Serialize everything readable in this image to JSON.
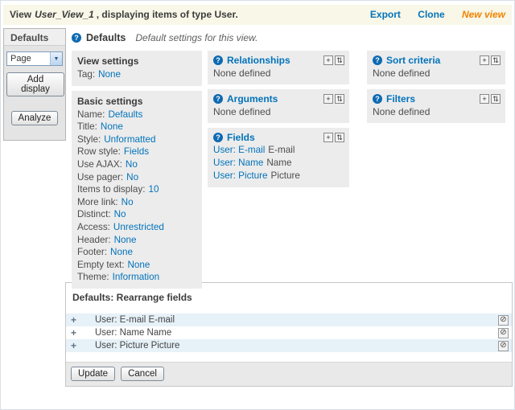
{
  "header": {
    "title_prefix": "View",
    "view_name": "User_View_1",
    "title_suffix": ", displaying items of type User.",
    "actions": {
      "export": "Export",
      "clone": "Clone",
      "new_view": "New view"
    }
  },
  "sidebar": {
    "tab_label": "Defaults",
    "display_select_value": "Page",
    "add_display_label": "Add display",
    "analyze_label": "Analyze"
  },
  "display": {
    "title": "Defaults",
    "subtitle": "Default settings for this view."
  },
  "panes": {
    "view_settings": {
      "title": "View settings",
      "rows": [
        {
          "label": "Tag:",
          "value": "None"
        }
      ]
    },
    "basic_settings": {
      "title": "Basic settings",
      "rows": [
        {
          "label": "Name:",
          "value": "Defaults"
        },
        {
          "label": "Title:",
          "value": "None"
        },
        {
          "label": "Style:",
          "value": "Unformatted"
        },
        {
          "label": "Row style:",
          "value": "Fields"
        },
        {
          "label": "Use AJAX:",
          "value": "No"
        },
        {
          "label": "Use pager:",
          "value": "No"
        },
        {
          "label": "Items to display:",
          "value": "10"
        },
        {
          "label": "More link:",
          "value": "No"
        },
        {
          "label": "Distinct:",
          "value": "No"
        },
        {
          "label": "Access:",
          "value": "Unrestricted"
        },
        {
          "label": "Header:",
          "value": "None"
        },
        {
          "label": "Footer:",
          "value": "None"
        },
        {
          "label": "Empty text:",
          "value": "None"
        },
        {
          "label": "Theme:",
          "value": "Information"
        }
      ]
    },
    "relationships": {
      "title": "Relationships",
      "empty": "None defined"
    },
    "arguments": {
      "title": "Arguments",
      "empty": "None defined"
    },
    "fields": {
      "title": "Fields",
      "rows": [
        {
          "link": "User: E-mail",
          "text": "E-mail"
        },
        {
          "link": "User: Name",
          "text": "Name"
        },
        {
          "link": "User: Picture",
          "text": "Picture"
        }
      ]
    },
    "sort_criteria": {
      "title": "Sort criteria",
      "empty": "None defined"
    },
    "filters": {
      "title": "Filters",
      "empty": "None defined"
    }
  },
  "rearrange": {
    "title": "Defaults: Rearrange fields",
    "rows": [
      "User: E-mail E-mail",
      "User: Name Name",
      "User: Picture Picture"
    ],
    "update_label": "Update",
    "cancel_label": "Cancel"
  },
  "icons": {
    "help": "?",
    "add": "+",
    "rearrange": "⇅",
    "remove": "⊘",
    "drag": "+",
    "select_arrow": "▼"
  },
  "colors": {
    "link_blue": "#0273ba",
    "new_view_orange": "#f08300",
    "header_bar_bg": "#f8f7e8",
    "pane_bg": "#ececec",
    "row_highlight": "#e6f1f8"
  }
}
